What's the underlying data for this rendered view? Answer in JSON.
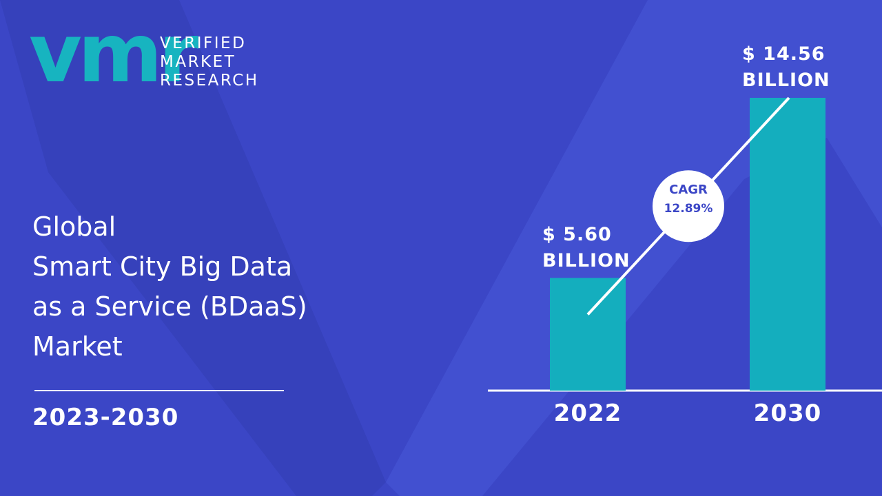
{
  "brand": {
    "mark": "vmr",
    "name": "VERIFIED\nMARKET\nRESEARCH"
  },
  "period": "2023-2030",
  "chart_data": {
    "type": "bar",
    "title": "Global\nSmart City Big Data\nas a Service (BDaaS)\nMarket",
    "categories": [
      "2022",
      "2030"
    ],
    "values": [
      5.6,
      14.56
    ],
    "value_labels": [
      "$ 5.60\nBILLION",
      "$ 14.56\nBILLION"
    ],
    "color": "#14aebe",
    "cagr": {
      "label": "CAGR",
      "value": "12.89%"
    }
  }
}
